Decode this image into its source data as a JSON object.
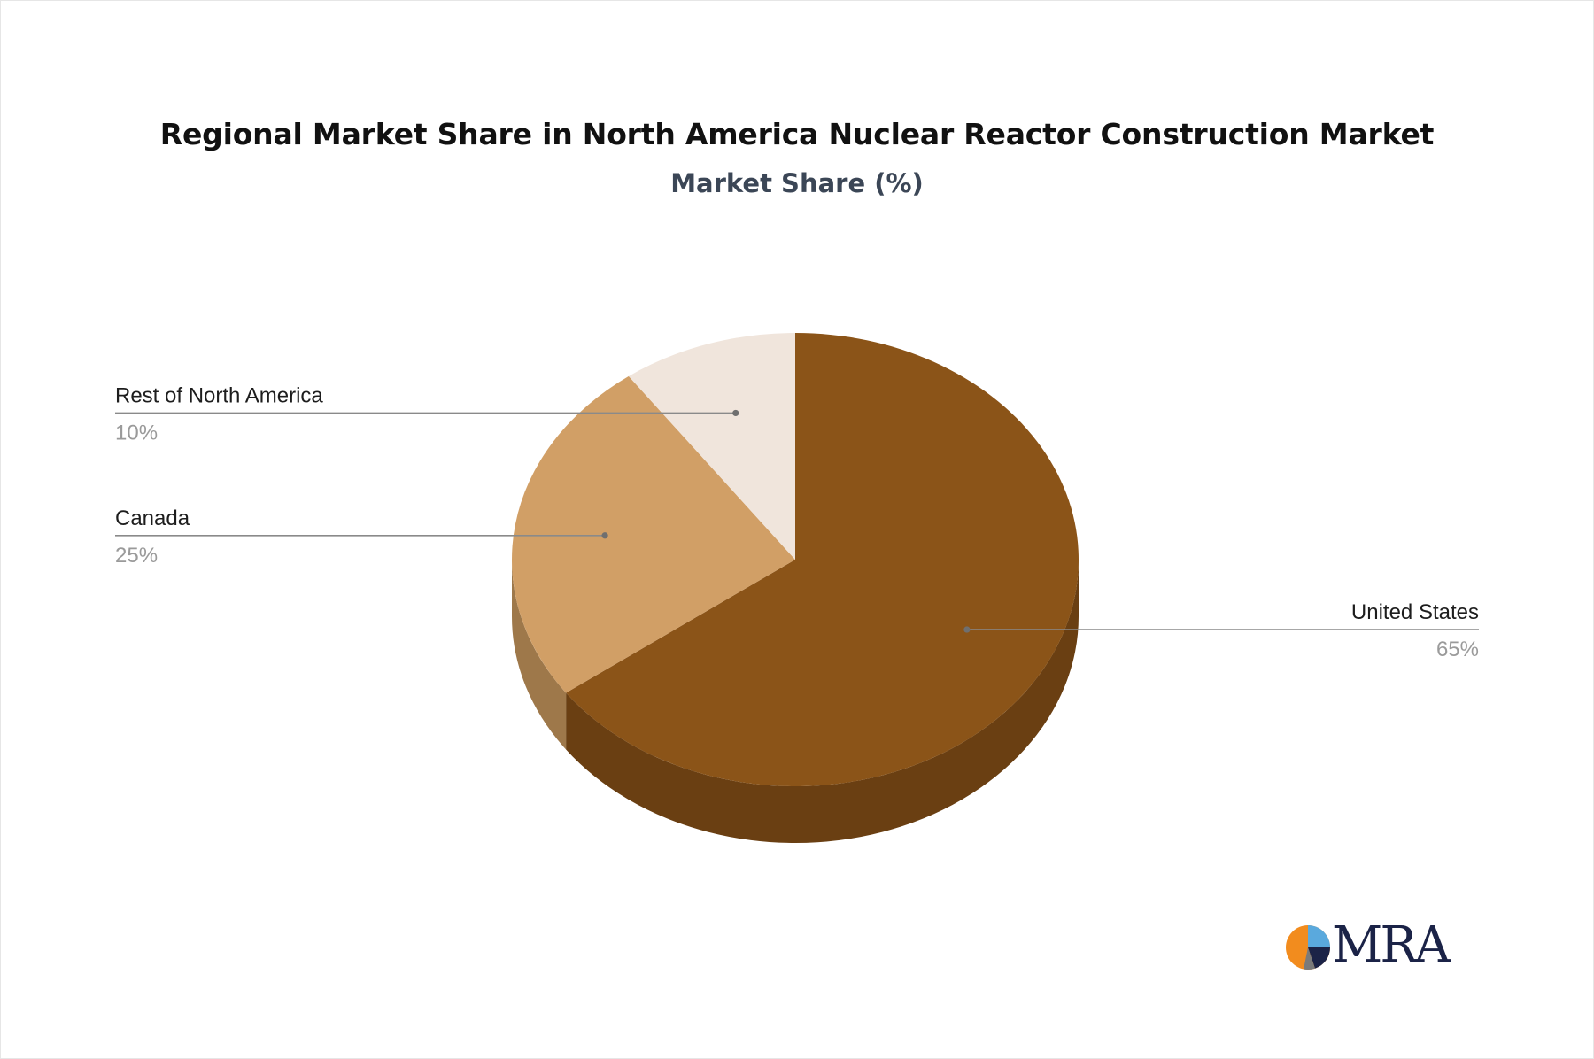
{
  "title": "Regional Market Share in North America Nuclear Reactor Construction Market",
  "subtitle": "Market Share (%)",
  "brand": {
    "logo_text": "MRA",
    "colors": {
      "orange": "#f28c1e",
      "navy": "#1b2347",
      "sky": "#5aa9dd"
    }
  },
  "chart_data": {
    "type": "pie",
    "style": "3d",
    "unit": "%",
    "slices": [
      {
        "label": "United States",
        "value": 65,
        "value_label": "65%",
        "color": "#8b5418",
        "side_color": "#6a3f12"
      },
      {
        "label": "Canada",
        "value": 25,
        "value_label": "25%",
        "color": "#d19f66",
        "side_color": "#9e784a"
      },
      {
        "label": "Rest of North America",
        "value": 10,
        "value_label": "10%",
        "color": "#f0e5dc",
        "side_color": "#c9bfb6"
      }
    ]
  }
}
